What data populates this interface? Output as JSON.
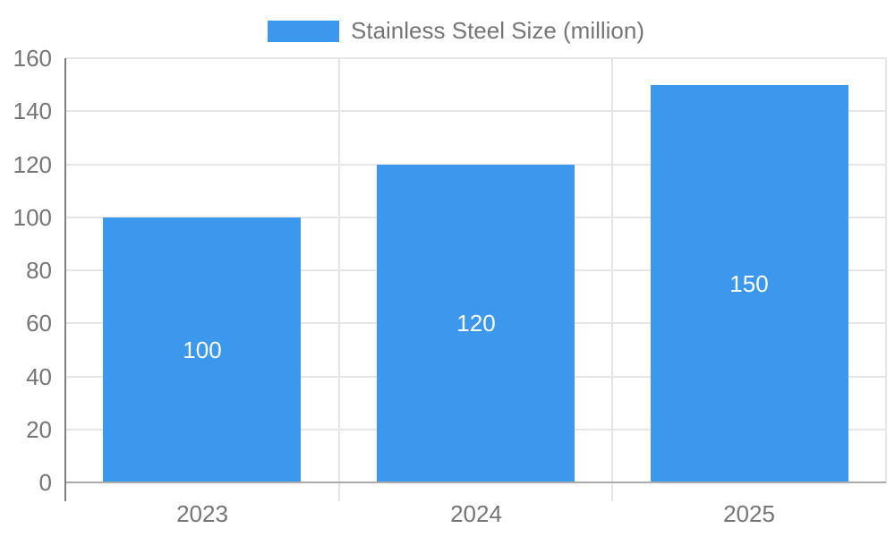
{
  "chart_data": {
    "type": "bar",
    "title": "Stainless Steel Size (million)",
    "legend": {
      "position": "top",
      "label": "Stainless Steel Size (million)"
    },
    "categories": [
      "2023",
      "2024",
      "2025"
    ],
    "series": [
      {
        "name": "Stainless Steel Size (million)",
        "values": [
          100,
          120,
          150
        ]
      }
    ],
    "data_labels": [
      "100",
      "120",
      "150"
    ],
    "xlabel": "",
    "ylabel": "",
    "ylim": [
      0,
      160
    ],
    "ytick_step": 20,
    "yticks": [
      "0",
      "20",
      "40",
      "60",
      "80",
      "100",
      "120",
      "140",
      "160"
    ],
    "grid": true,
    "colors": {
      "bar": "#3B98EC",
      "data_label": "#FFFFFF",
      "axis_text": "#757575",
      "gridline": "#E6E6E6",
      "baseline": "#ABABAB",
      "y_axis_line": "#7F7F7F",
      "background": "#FFFFFF"
    }
  }
}
